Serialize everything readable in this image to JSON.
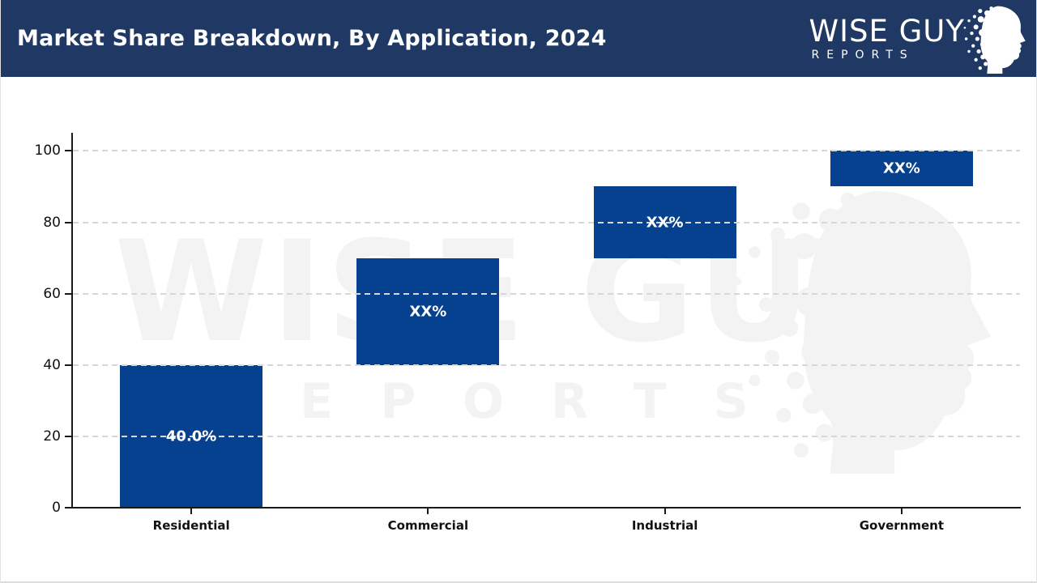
{
  "header": {
    "title": "Market Share Breakdown, By Application, 2024",
    "logo": {
      "line1": "WISE GUY",
      "line2": "REPORTS"
    }
  },
  "watermark": {
    "line1": "WISE GUY",
    "line2": "REPORTS"
  },
  "colors": {
    "header_bg": "#1f3864",
    "bar": "#05418f",
    "bar_label": "#ffffff",
    "gridline": "#d7d7d7",
    "axis": "#1a1a1a"
  },
  "chart_data": {
    "type": "bar",
    "subtype": "waterfall",
    "title": "Market Share Breakdown, By Application, 2024",
    "categories": [
      "Residential",
      "Commercial",
      "Industrial",
      "Government"
    ],
    "segments": [
      {
        "category": "Residential",
        "start": 0,
        "end": 40,
        "label": "40.0%"
      },
      {
        "category": "Commercial",
        "start": 40,
        "end": 70,
        "label": "XX%"
      },
      {
        "category": "Industrial",
        "start": 70,
        "end": 90,
        "label": "XX%"
      },
      {
        "category": "Government",
        "start": 90,
        "end": 100,
        "label": "XX%"
      }
    ],
    "y_ticks": [
      0,
      20,
      40,
      60,
      80,
      100
    ],
    "ylim": [
      0,
      105
    ],
    "xlabel": "",
    "ylabel": "",
    "grid": "horizontal-dashed-over-bars",
    "legend": "none"
  }
}
